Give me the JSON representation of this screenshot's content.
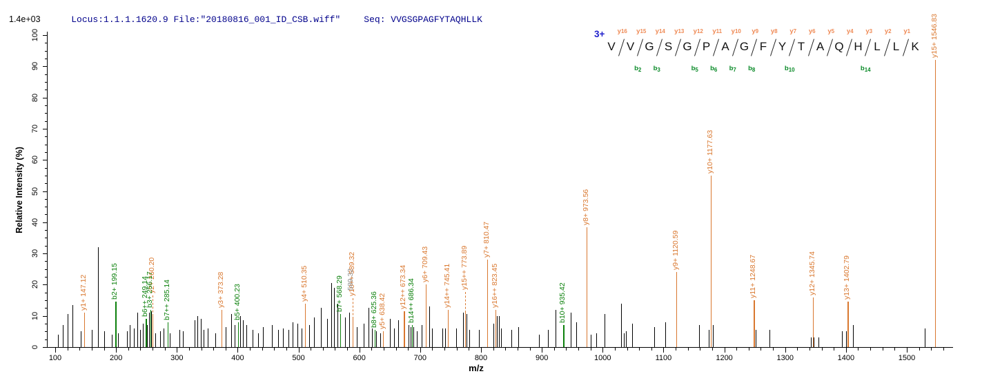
{
  "header": {
    "locus_file": "Locus:1.1.1.1620.9 File:\"20180816_001_ID_CSB.wiff\"",
    "seq_label": "Seq: VVGSGPAGFYTAQHLLK"
  },
  "colors": {
    "y_ion": "#d9772e",
    "b_ion": "#0b800b",
    "seq_y": "#ef8a55",
    "seq_b": "#0a8a28",
    "header_blue": "#00008b",
    "charge_blue": "#2020cc",
    "gray_label": "#909090",
    "axis": "#000000"
  },
  "peptide_map": {
    "charge": "3+",
    "residues": [
      "V",
      "V",
      "G",
      "S",
      "G",
      "P",
      "A",
      "G",
      "F",
      "Y",
      "T",
      "A",
      "Q",
      "H",
      "L",
      "L",
      "K"
    ],
    "y_labels": [
      "y16",
      "y15",
      "y14",
      "y13",
      "y12",
      "y11",
      "y10",
      "y9",
      "y8",
      "y7",
      "y6",
      "y5",
      "y4",
      "y3",
      "y2",
      "y1"
    ],
    "b_labels": [
      "",
      "b2",
      "b3",
      "",
      "b5",
      "b6",
      "b7",
      "b8",
      "",
      "b10",
      "",
      "",
      "",
      "b14",
      "",
      ""
    ]
  },
  "chart_data": {
    "type": "bar",
    "subtype": "MS/MS fragment ion stick spectrum",
    "xlabel": "m/z",
    "ylabel": "Relative  Intensity (%)",
    "max_intensity_label": "1.4e+03",
    "xlim": [
      100,
      1576
    ],
    "ylim": [
      0,
      100
    ],
    "x_tick_minor": 20,
    "x_tick_major": 100,
    "x_tick_last": 1560,
    "x_label_last": 1500,
    "y_tick_minor": 2.5,
    "y_tick_major": 10,
    "legend_position": "none",
    "grid": false,
    "annotated_peaks": [
      {
        "label": "y1+ 147.12",
        "mz": 147.12,
        "pct": 11,
        "series": "y"
      },
      {
        "label": "y2+ 260.20",
        "mz": 260.2,
        "pct": 10,
        "series": "y",
        "dashed": true
      },
      {
        "label": "y3+ 373.28",
        "mz": 373.28,
        "pct": 12,
        "series": "y"
      },
      {
        "label": "y4+ 510.35",
        "mz": 510.35,
        "pct": 14,
        "series": "y"
      },
      {
        "label": "y5+ 638.42",
        "mz": 638.42,
        "pct": 5,
        "series": "y"
      },
      {
        "label": "y6+ 709.43",
        "mz": 709.43,
        "pct": 20,
        "series": "y"
      },
      {
        "label": "y7+ 810.47",
        "mz": 810.47,
        "pct": 28,
        "series": "y"
      },
      {
        "label": "y8+ 973.56",
        "mz": 973.56,
        "pct": 38.5,
        "series": "y"
      },
      {
        "label": "y9+ 1120.59",
        "mz": 1120.59,
        "pct": 24,
        "series": "y"
      },
      {
        "label": "y10+ 1177.63",
        "mz": 1177.63,
        "pct": 55,
        "series": "y"
      },
      {
        "label": "y11+ 1248.67",
        "mz": 1248.67,
        "pct": 15,
        "series": "y"
      },
      {
        "label": "y12+ 1345.74",
        "mz": 1345.74,
        "pct": 16,
        "series": "y"
      },
      {
        "label": "y13+ 1402.79",
        "mz": 1402.79,
        "pct": 14.5,
        "series": "y"
      },
      {
        "label": "y15+ 1546.83",
        "mz": 1546.83,
        "pct": 92,
        "series": "y"
      },
      {
        "label": "y10++ 589.32",
        "mz": 589.32,
        "pct": 9,
        "series": "y",
        "dashed": true
      },
      {
        "label": "y12++ 673.34",
        "mz": 673.34,
        "pct": 11.5,
        "series": "y"
      },
      {
        "label": "y14++ 745.41",
        "mz": 745.41,
        "pct": 12,
        "series": "y"
      },
      {
        "label": "y15++ 773.89",
        "mz": 773.89,
        "pct": 11,
        "series": "y",
        "dashed": true
      },
      {
        "label": "y16++ 823.45",
        "mz": 823.45,
        "pct": 12,
        "series": "y"
      },
      {
        "label": "b2+ 199.15",
        "mz": 199.15,
        "pct": 14.5,
        "series": "b"
      },
      {
        "label": "b6++ 249.14",
        "mz": 249.14,
        "pct": 9,
        "series": "b"
      },
      {
        "label": "b3+ 256.17",
        "mz": 256.17,
        "pct": 12,
        "series": "b"
      },
      {
        "label": "b7++ 285.14",
        "mz": 285.14,
        "pct": 8,
        "series": "b"
      },
      {
        "label": "b5+ 400.23",
        "mz": 400.23,
        "pct": 8,
        "series": "b"
      },
      {
        "label": "b7+ 568.29",
        "mz": 568.29,
        "pct": 10.5,
        "series": "b"
      },
      {
        "label": "b8+ 625.36",
        "mz": 625.36,
        "pct": 5.5,
        "series": "b"
      },
      {
        "label": "b14++ 686.34",
        "mz": 686.34,
        "pct": 7,
        "series": "b"
      },
      {
        "label": "b10+ 935.42",
        "mz": 935.42,
        "pct": 7,
        "series": "b"
      }
    ],
    "extra_labels": [
      {
        "text": "589.32",
        "mz": 586.5,
        "anchor_pct": 18
      }
    ],
    "unlabeled_peaks": [
      [
        104,
        4
      ],
      [
        112,
        7
      ],
      [
        120,
        10.5
      ],
      [
        128,
        13.5
      ],
      [
        142,
        5
      ],
      [
        160,
        5.5
      ],
      [
        170.5,
        32
      ],
      [
        181,
        5
      ],
      [
        193,
        4
      ],
      [
        203,
        4.5
      ],
      [
        218,
        5
      ],
      [
        222,
        7
      ],
      [
        229,
        6
      ],
      [
        235,
        11
      ],
      [
        239,
        5.5
      ],
      [
        244,
        7.5
      ],
      [
        251,
        7
      ],
      [
        254,
        11
      ],
      [
        258,
        11.5
      ],
      [
        264,
        4.5
      ],
      [
        272,
        5
      ],
      [
        278,
        6
      ],
      [
        288,
        4.5
      ],
      [
        304,
        5.5
      ],
      [
        310,
        5
      ],
      [
        329,
        8.5
      ],
      [
        334,
        10
      ],
      [
        339,
        9
      ],
      [
        344,
        5.5
      ],
      [
        351,
        6
      ],
      [
        363,
        4.5
      ],
      [
        380,
        6.5
      ],
      [
        389,
        10.5
      ],
      [
        395,
        7
      ],
      [
        404,
        10
      ],
      [
        409,
        8.5
      ],
      [
        414,
        7
      ],
      [
        425,
        5.5
      ],
      [
        433,
        4.5
      ],
      [
        442,
        6.5
      ],
      [
        456,
        7
      ],
      [
        467,
        5.5
      ],
      [
        474,
        6
      ],
      [
        484,
        5.5
      ],
      [
        490,
        8
      ],
      [
        498,
        7.5
      ],
      [
        505,
        6
      ],
      [
        517,
        7
      ],
      [
        526,
        9.5
      ],
      [
        537,
        12.5
      ],
      [
        547,
        9
      ],
      [
        554,
        20.5
      ],
      [
        558,
        19
      ],
      [
        564,
        14
      ],
      [
        577,
        9.5
      ],
      [
        583,
        11
      ],
      [
        596,
        6.5
      ],
      [
        607,
        7.5
      ],
      [
        615,
        12.5
      ],
      [
        621,
        6
      ],
      [
        628,
        5
      ],
      [
        634,
        4.5
      ],
      [
        650,
        9
      ],
      [
        657,
        6
      ],
      [
        664,
        8.5
      ],
      [
        681,
        7
      ],
      [
        684,
        6.5
      ],
      [
        689,
        6.5
      ],
      [
        695,
        5
      ],
      [
        702,
        7
      ],
      [
        715,
        13
      ],
      [
        719,
        6
      ],
      [
        736,
        6
      ],
      [
        741,
        6
      ],
      [
        759,
        6
      ],
      [
        771,
        11
      ],
      [
        776,
        10.5
      ],
      [
        781,
        5.5
      ],
      [
        797,
        5.5
      ],
      [
        820,
        7.5
      ],
      [
        826,
        10
      ],
      [
        829,
        10
      ],
      [
        833,
        6
      ],
      [
        850,
        5.5
      ],
      [
        861,
        6.5
      ],
      [
        895,
        4
      ],
      [
        910,
        5.5
      ],
      [
        922,
        12
      ],
      [
        948,
        11
      ],
      [
        956,
        8
      ],
      [
        980,
        4
      ],
      [
        990,
        4.5
      ],
      [
        1003,
        10.5
      ],
      [
        1030,
        14
      ],
      [
        1035,
        4.5
      ],
      [
        1038,
        5
      ],
      [
        1049,
        7.5
      ],
      [
        1085,
        6.5
      ],
      [
        1103,
        8
      ],
      [
        1159,
        7
      ],
      [
        1174,
        5.5
      ],
      [
        1181,
        7
      ],
      [
        1251,
        5.5
      ],
      [
        1274,
        5.5
      ],
      [
        1342,
        3
      ],
      [
        1347,
        3
      ],
      [
        1355,
        3
      ],
      [
        1393,
        5
      ],
      [
        1400,
        5
      ],
      [
        1412,
        7
      ],
      [
        1530,
        6
      ]
    ]
  }
}
